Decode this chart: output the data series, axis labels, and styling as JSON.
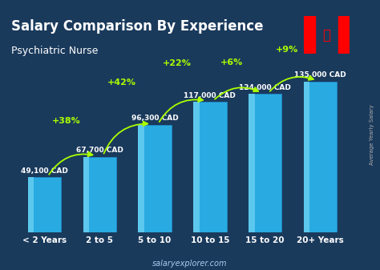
{
  "title": "Salary Comparison By Experience",
  "subtitle": "Psychiatric Nurse",
  "categories": [
    "< 2 Years",
    "2 to 5",
    "5 to 10",
    "10 to 15",
    "15 to 20",
    "20+ Years"
  ],
  "values": [
    49100,
    67700,
    96300,
    117000,
    124000,
    135000
  ],
  "labels": [
    "49,100 CAD",
    "67,700 CAD",
    "96,300 CAD",
    "117,000 CAD",
    "124,000 CAD",
    "135,000 CAD"
  ],
  "pct_changes": [
    "+38%",
    "+42%",
    "+22%",
    "+6%",
    "+9%"
  ],
  "bar_color": "#29ABE2",
  "bar_edge_color": "#1E90D0",
  "bar_color_light": "#5CC8EE",
  "bg_color": "#1a3a5c",
  "title_color": "#ffffff",
  "label_color": "#ffffff",
  "pct_color": "#aaff00",
  "footer": "salaryexplorer.com",
  "ylabel": "Average Yearly Salary",
  "ylim": [
    0,
    155000
  ]
}
